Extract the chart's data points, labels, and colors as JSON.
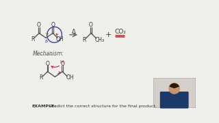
{
  "bg_color": "#efefeb",
  "delta_label": "Δ",
  "plus_label": "+",
  "co2_label": "CO₂",
  "r_label": "R",
  "ch3_label": "CH₃",
  "oh_label": "OH",
  "beta_label": "β",
  "mechanism_label": "Mechanism:",
  "example_text_bold": "EXAMPLE:",
  "example_text_normal": " Predict the correct structure for the final product.",
  "gray": "#666666",
  "dark": "#333333",
  "red": "#cc2222",
  "blue": "#3344aa",
  "green": "#447744",
  "person_bg": "#c8b89a",
  "person_shirt": "#1a3a6a",
  "person_skin": "#c8956c"
}
